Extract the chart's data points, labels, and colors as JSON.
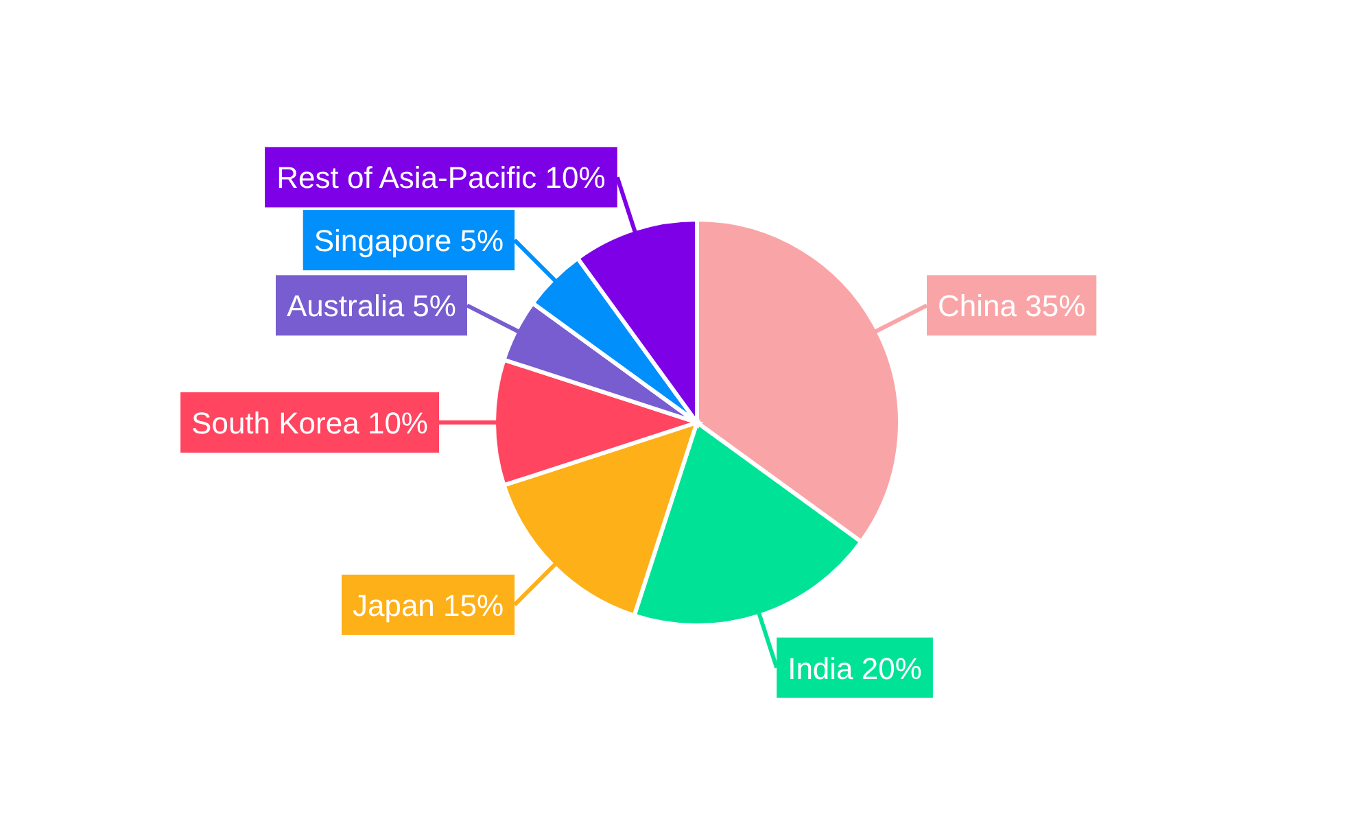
{
  "chart_data": {
    "type": "pie",
    "categories": [
      "China",
      "India",
      "Japan",
      "South Korea",
      "Australia",
      "Singapore",
      "Rest of Asia-Pacific"
    ],
    "values": [
      35,
      20,
      15,
      10,
      5,
      5,
      10
    ],
    "value_labels": [
      "35%",
      "20%",
      "15%",
      "10%",
      "5%",
      "5%",
      "10%"
    ],
    "colors": [
      "#f9a5a8",
      "#00e396",
      "#feb019",
      "#ff4560",
      "#775dd0",
      "#008ffb",
      "#7d00e6"
    ],
    "data_labels": true
  }
}
